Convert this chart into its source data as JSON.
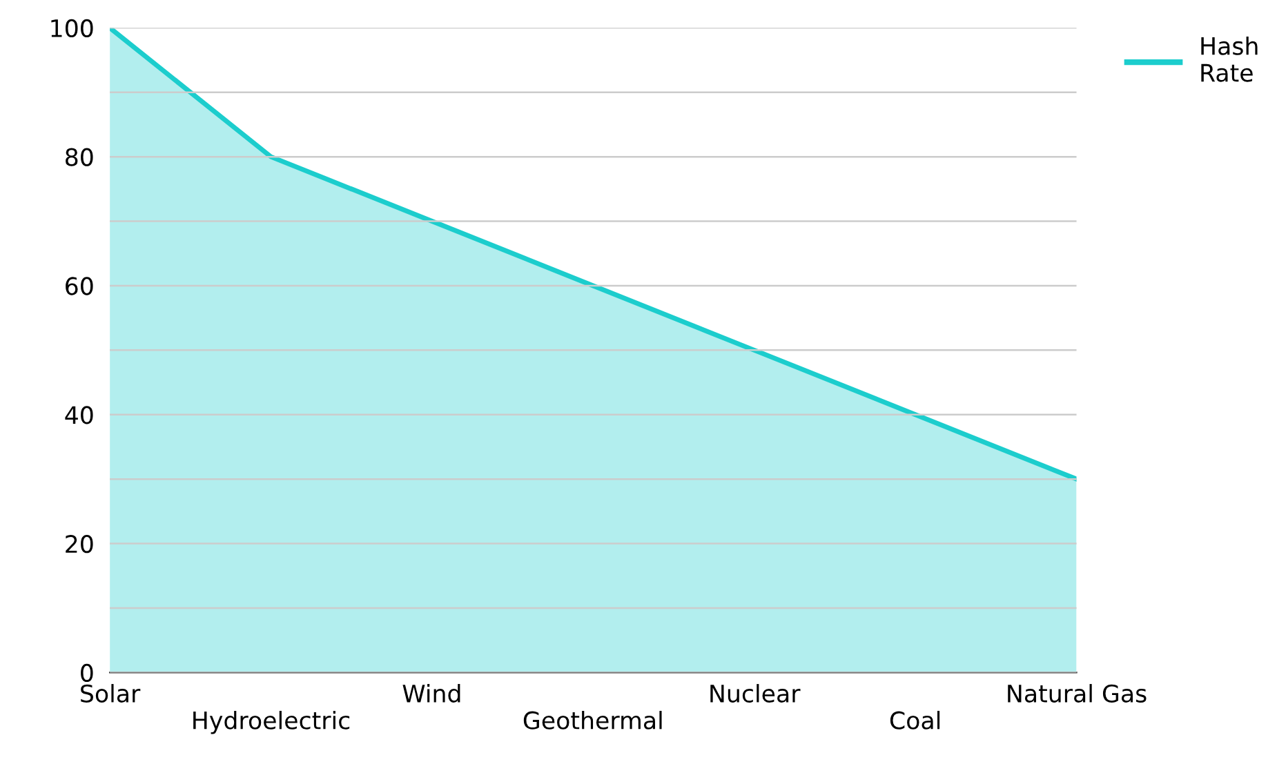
{
  "chart_data": {
    "type": "area",
    "categories": [
      "Solar",
      "Hydroelectric",
      "Wind",
      "Geothermal",
      "Nuclear",
      "Coal",
      "Natural Gas"
    ],
    "series": [
      {
        "name": "Hash Rate",
        "color": "#1ccdcd",
        "values": [
          100,
          80,
          70,
          60,
          50,
          40,
          30
        ]
      }
    ],
    "ylim": [
      0,
      100
    ],
    "yticks": [
      0,
      {
        "value": 10,
        "label": null
      },
      20,
      {
        "value": 30,
        "label": null
      },
      40,
      {
        "value": 50,
        "label": null
      },
      60,
      {
        "value": 70,
        "label": null
      },
      80,
      {
        "value": 90,
        "label": null
      },
      100
    ],
    "grid": "y",
    "legend": "top right"
  }
}
